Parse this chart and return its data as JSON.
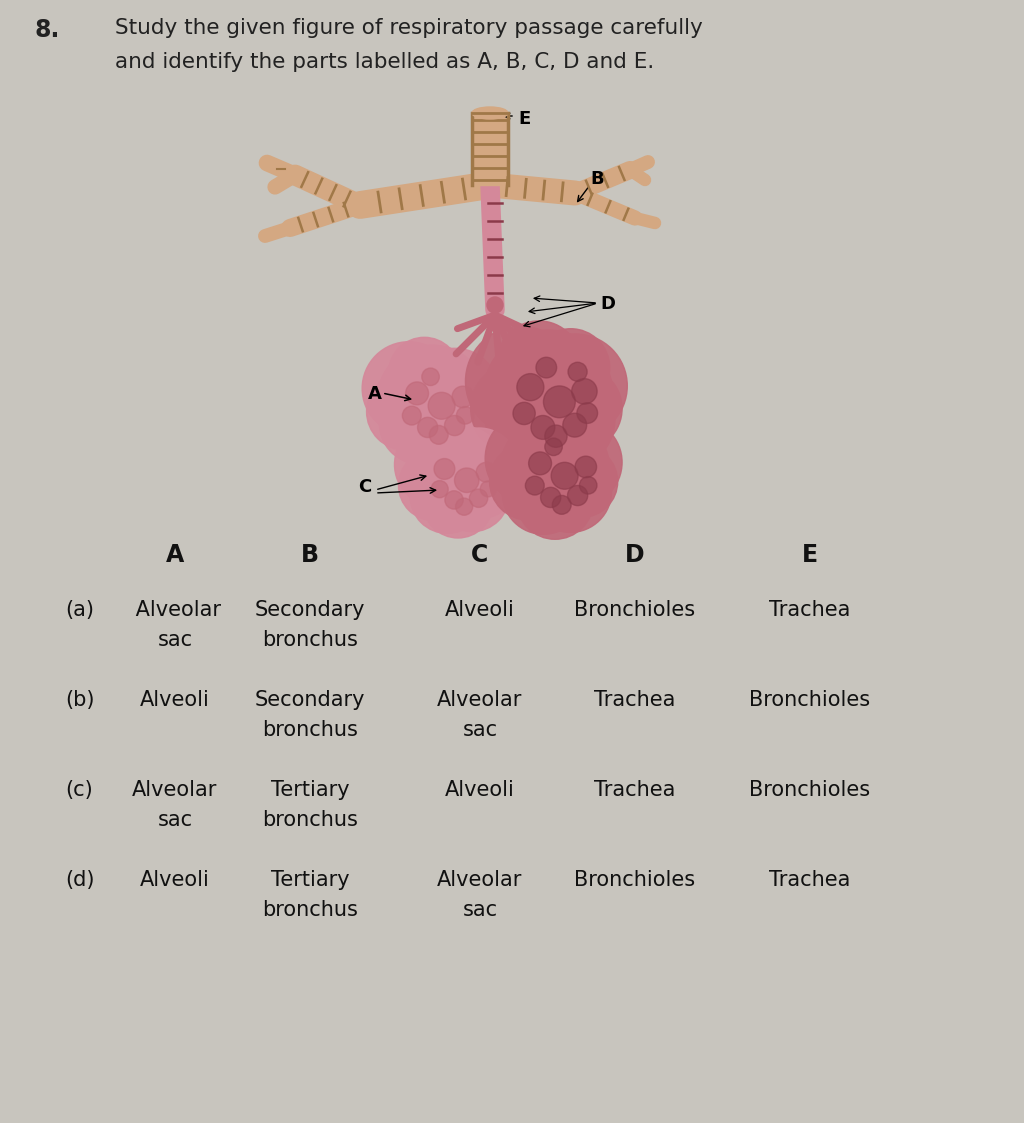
{
  "background_color": "#c8c5be",
  "question_number": "8.",
  "question_line1": "Study the given figure of respiratory passage carefully",
  "question_line2": "and identify the parts labelled as A, B, C, D and E.",
  "header_row": [
    "A",
    "B",
    "C",
    "D",
    "E"
  ],
  "options": [
    {
      "label": "(a)",
      "line1": [
        " Alveolar",
        "Secondary",
        "Alveoli",
        "Bronchioles",
        "Trachea"
      ],
      "line2": [
        "sac",
        "bronchus",
        "",
        "",
        ""
      ]
    },
    {
      "label": "(b)",
      "line1": [
        "Alveoli",
        "Secondary",
        "Alveolar",
        "Trachea",
        "Bronchioles"
      ],
      "line2": [
        "",
        "bronchus",
        "sac",
        "",
        ""
      ]
    },
    {
      "label": "(c)",
      "line1": [
        "Alveolar",
        "Tertiary",
        "Alveoli",
        "Trachea",
        "Bronchioles"
      ],
      "line2": [
        "sac",
        "bronchus",
        "",
        "",
        ""
      ]
    },
    {
      "label": "(d)",
      "line1": [
        "Alveoli",
        "Tertiary",
        "Alveolar",
        "Bronchioles",
        "Trachea"
      ],
      "line2": [
        "",
        "bronchus",
        "sac",
        "",
        ""
      ]
    }
  ],
  "tube_color": "#d4a882",
  "tube_ring_color": "#a07848",
  "pink_light": "#d4889a",
  "pink_mid": "#c06878",
  "pink_dark": "#8b3a4a",
  "brown_dark": "#5a2030"
}
